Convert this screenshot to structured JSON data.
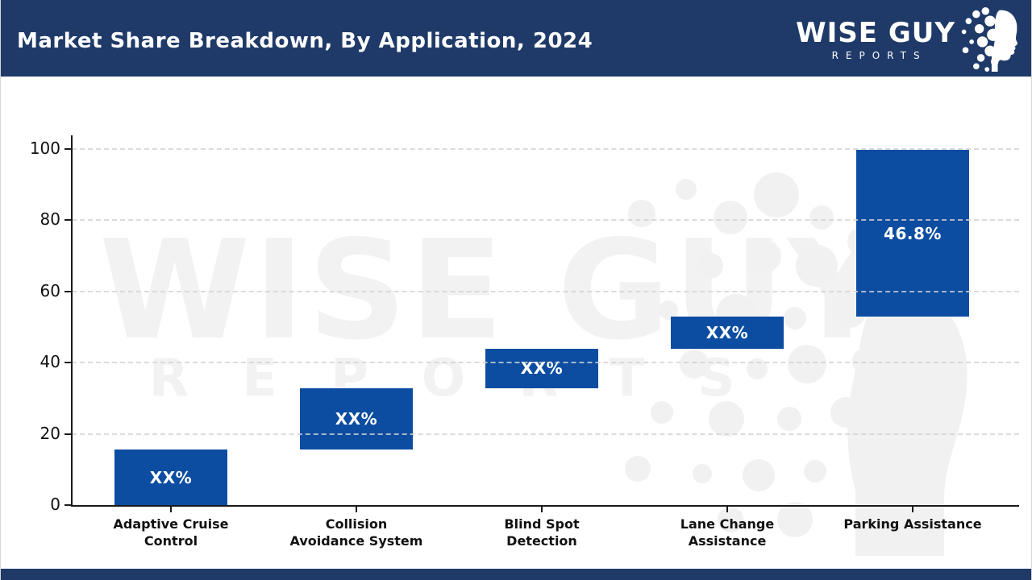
{
  "header": {
    "title": "Market Share Breakdown, By Application, 2024",
    "bg_color": "#1f3a68",
    "logo": {
      "line1": "WISE GUY",
      "line2": "REPORTS"
    }
  },
  "watermark": {
    "line1": "WISE GUY",
    "line2": "REPORTS",
    "color": "#f2f2f2"
  },
  "chart_data": {
    "type": "bar",
    "subtype": "floating-waterfall",
    "title": "Market Share Breakdown, By Application, 2024",
    "xlabel": "",
    "ylabel": "",
    "ylim": [
      0,
      105
    ],
    "grid": true,
    "gridline_style": "dashed",
    "bar_color": "#0c4da1",
    "bar_label_color": "#ffffff",
    "axis_color": "#1a1a1a",
    "yticks": [
      0,
      20,
      40,
      60,
      80,
      100
    ],
    "categories": [
      [
        "Adaptive Cruise",
        "Control"
      ],
      [
        "Collision",
        "Avoidance System"
      ],
      [
        "Blind Spot",
        "Detection"
      ],
      [
        "Lane Change",
        "Assistance"
      ],
      [
        "Parking Assistance"
      ]
    ],
    "segments": [
      {
        "category": "Adaptive Cruise Control",
        "start": 0,
        "end": 15.6,
        "label": "XX%"
      },
      {
        "category": "Collision Avoidance System",
        "start": 15.6,
        "end": 32.8,
        "label": "XX%"
      },
      {
        "category": "Blind Spot Detection",
        "start": 32.8,
        "end": 43.9,
        "label": "XX%"
      },
      {
        "category": "Lane Change Assistance",
        "start": 43.9,
        "end": 52.9,
        "label": "XX%"
      },
      {
        "category": "Parking Assistance",
        "start": 52.9,
        "end": 99.7,
        "label": "46.8%"
      }
    ]
  }
}
